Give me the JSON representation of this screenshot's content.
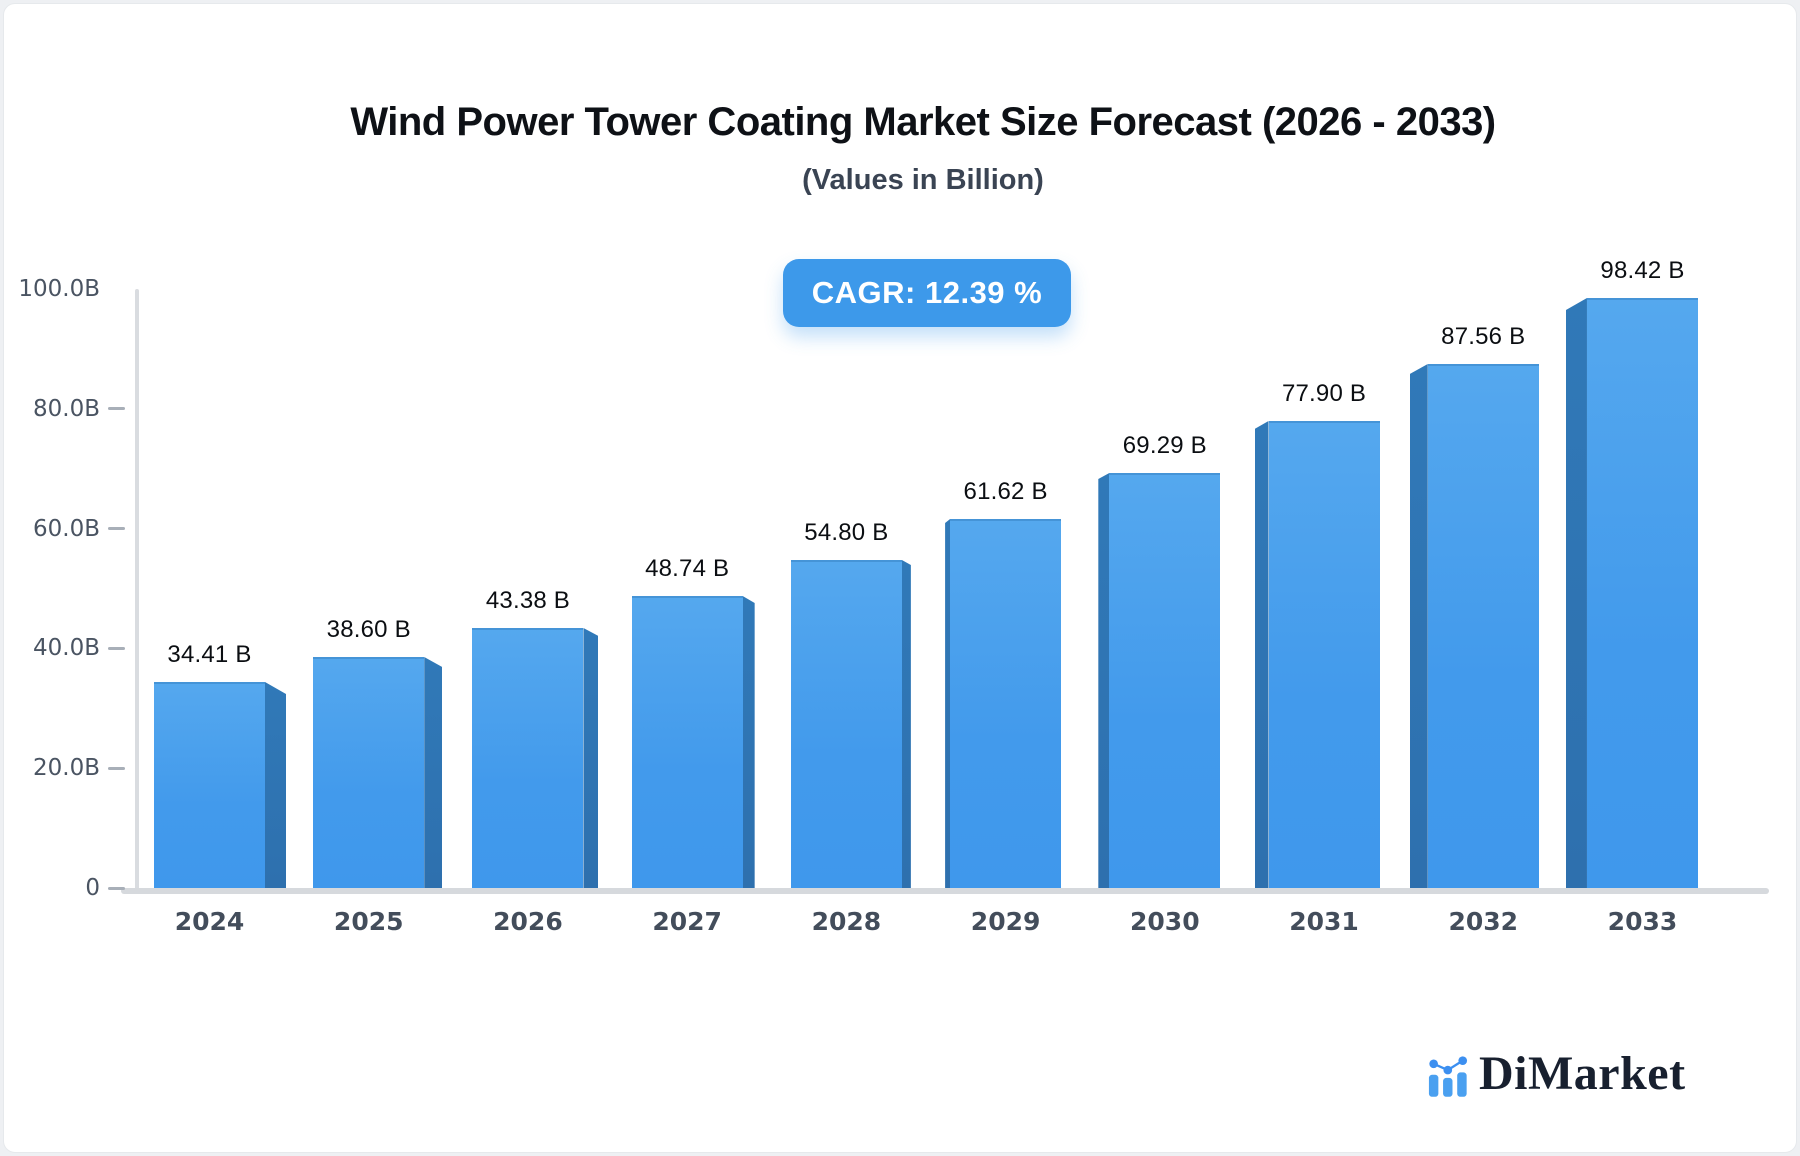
{
  "header": {
    "title": "Wind Power Tower Coating Market Size Forecast (2026 - 2033)",
    "subtitle": "(Values in Billion)"
  },
  "badge": {
    "label": "CAGR: 12.39 %"
  },
  "chart_data": {
    "type": "bar",
    "title": "Wind Power Tower Coating Market Size Forecast (2026 - 2033)",
    "subtitle": "(Values in Billion)",
    "cagr_percent": 12.39,
    "categories": [
      "2024",
      "2025",
      "2026",
      "2027",
      "2028",
      "2029",
      "2030",
      "2031",
      "2032",
      "2033"
    ],
    "values": [
      34.41,
      38.6,
      43.38,
      48.74,
      54.8,
      61.62,
      69.29,
      77.9,
      87.56,
      98.42
    ],
    "value_labels": [
      "34.41 B",
      "38.60 B",
      "43.38 B",
      "48.74 B",
      "54.80 B",
      "61.62 B",
      "69.29 B",
      "77.90 B",
      "87.56 B",
      "98.42 B"
    ],
    "unit": "Billion",
    "xlabel": "",
    "ylabel": "",
    "ylim": [
      0,
      100
    ],
    "yticks": [
      {
        "value": 100,
        "label": "100.0B",
        "tick": false
      },
      {
        "value": 80,
        "label": "80.0B",
        "tick": true
      },
      {
        "value": 60,
        "label": "60.0B",
        "tick": true
      },
      {
        "value": 40,
        "label": "40.0B",
        "tick": true
      },
      {
        "value": 20,
        "label": "20.0B",
        "tick": true
      },
      {
        "value": 0,
        "label": "0",
        "tick": true
      }
    ],
    "grid": false,
    "legend": "none",
    "bar_style": "3d-perspective"
  },
  "colors": {
    "bar_face_top": "#55a8ee",
    "bar_face_bottom": "#3f98ec",
    "bar_side": "#2e70ae",
    "badge_background": "#3d99ea",
    "badge_text": "#ffffff",
    "axis_line": "#d9dce0",
    "axis_text": "#4a5462",
    "value_text": "#0b0e12",
    "logo_blue": "#4aa0f0",
    "logo_text": "#18202f"
  },
  "logo": {
    "brand": "DiMarket",
    "icon": "mini-bar-line-chart-icon"
  }
}
